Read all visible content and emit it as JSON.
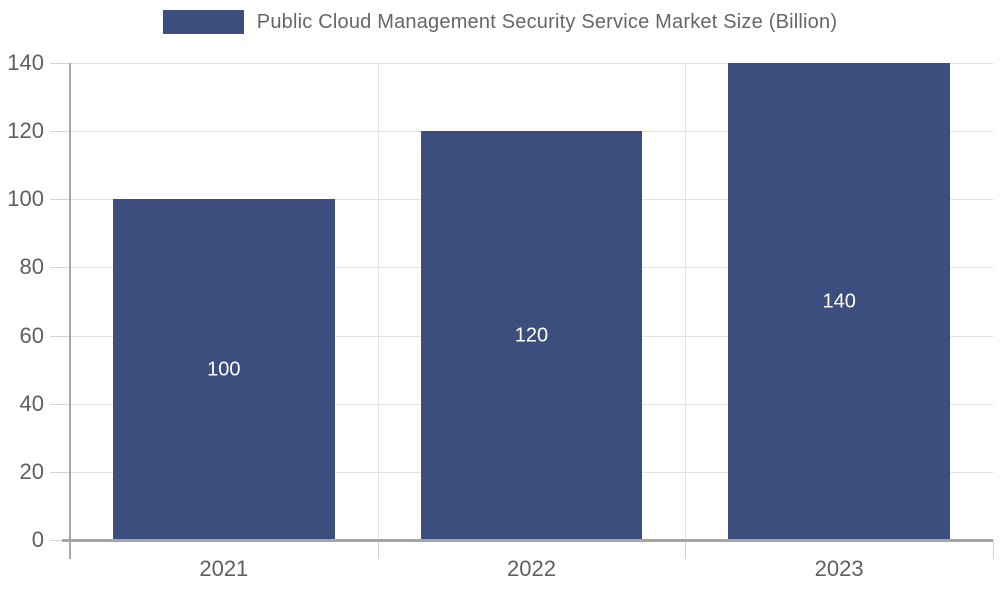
{
  "legend": {
    "label": "Public Cloud Management Security Service Market Size (Billion)"
  },
  "colors": {
    "background": "#ffffff",
    "bar": "#3B4E7E",
    "axis": "#a6a6a6",
    "grid": "#e2e2e2",
    "tick": "#d2d2d2",
    "tick_text": "#5f5f5f",
    "legend_text": "#666666",
    "data_label": "#ffffff"
  },
  "chart_data": {
    "type": "bar",
    "title": "Public Cloud Management Security Service Market Size (Billion)",
    "categories": [
      "2021",
      "2022",
      "2023"
    ],
    "values": [
      100,
      120,
      140
    ],
    "xlabel": "",
    "ylabel": "",
    "ylim": [
      0,
      140
    ],
    "yticks": [
      0,
      20,
      40,
      60,
      80,
      100,
      120,
      140
    ],
    "grid": true,
    "legend_position": "top",
    "data_labels_shown": true,
    "bar_width_fraction": 0.72
  }
}
